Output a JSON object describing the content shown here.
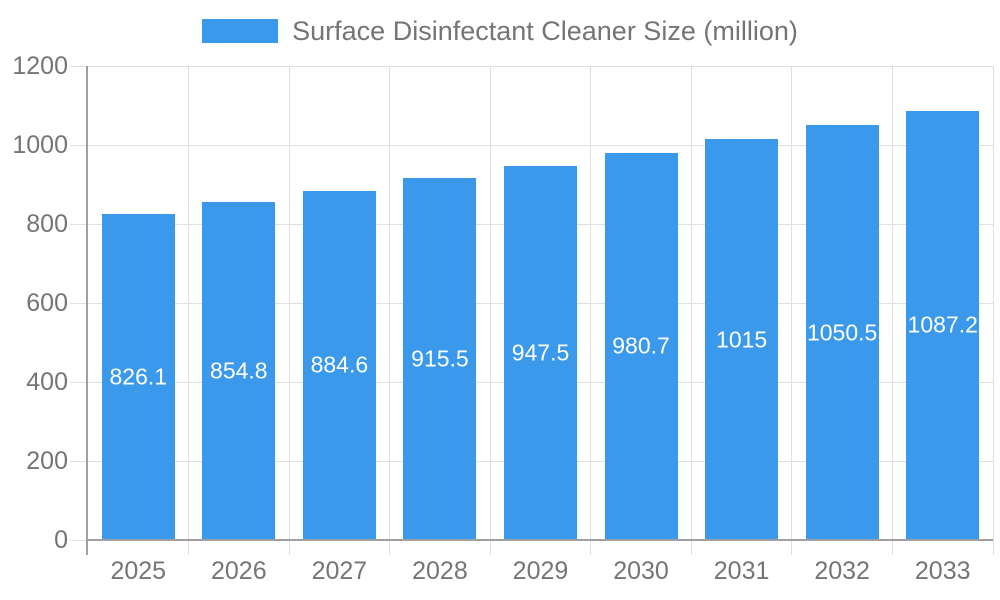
{
  "chart_data": {
    "type": "bar",
    "title": "Surface Disinfectant Cleaner Size (million)",
    "legend_position": "top",
    "categories": [
      "2025",
      "2026",
      "2027",
      "2028",
      "2029",
      "2030",
      "2031",
      "2032",
      "2033"
    ],
    "series": [
      {
        "name": "Surface Disinfectant Cleaner Size (million)",
        "values": [
          826.1,
          854.8,
          884.6,
          915.5,
          947.5,
          980.7,
          1015,
          1050.5,
          1087.2
        ],
        "value_labels": [
          "826.1",
          "854.8",
          "884.6",
          "915.5",
          "947.5",
          "980.7",
          "1015",
          "1050.5",
          "1087.2"
        ]
      }
    ],
    "ylim": [
      0,
      1200
    ],
    "yticks": [
      0,
      200,
      400,
      600,
      800,
      1000,
      1200
    ],
    "ytick_labels": [
      "0",
      "200",
      "400",
      "600",
      "800",
      "1000",
      "1200"
    ],
    "grid": true,
    "value_labels_inside_bars": true,
    "colors": {
      "bar": "#3B99EC",
      "grid": "#E0E0E0",
      "axis": "#A0A0A0",
      "text": "#757575",
      "value_text": "#FFFFFF",
      "background": "#FFFFFF"
    }
  }
}
